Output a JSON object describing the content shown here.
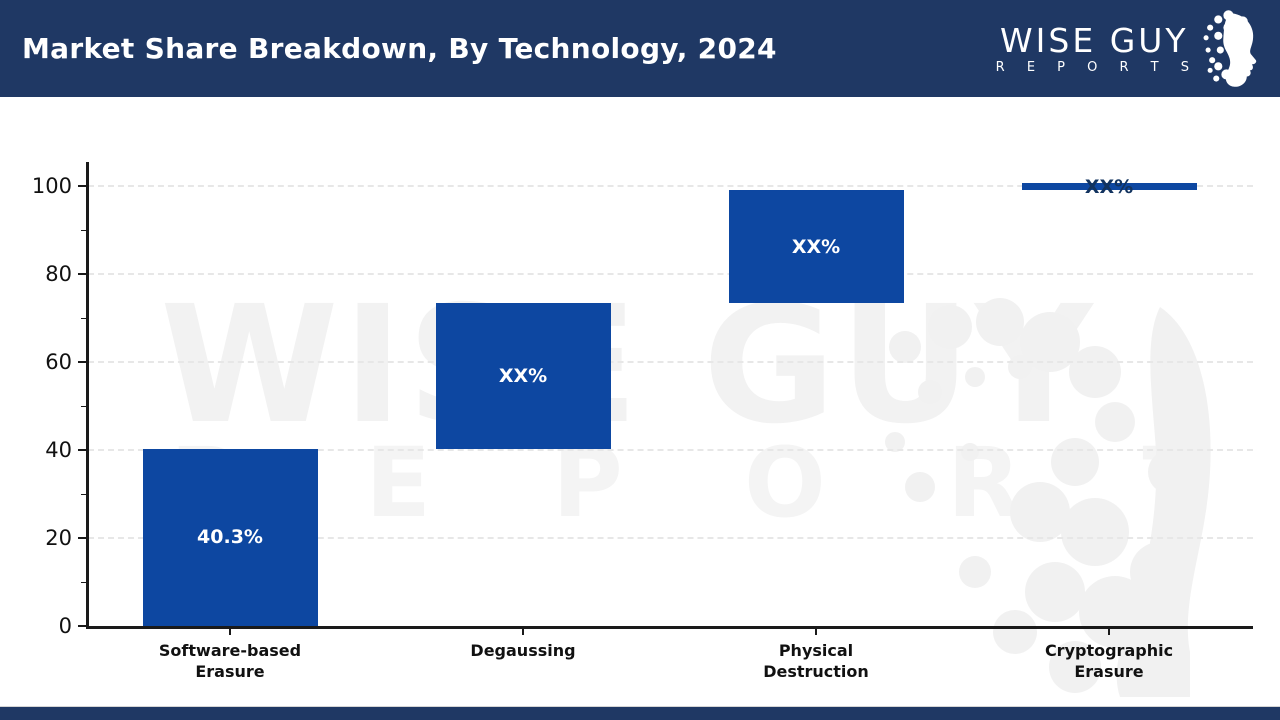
{
  "header": {
    "title": "Market Share Breakdown, By Technology, 2024",
    "logo": {
      "line1": "WISE GUY",
      "line2": "R E P O R T S"
    }
  },
  "watermark": {
    "line1": "WISE GUY",
    "line2": "R E P O R T S"
  },
  "chart_data": {
    "type": "bar",
    "subtype": "waterfall",
    "title": "Market Share Breakdown, By Technology, 2024",
    "xlabel": "",
    "ylabel": "",
    "ylim": [
      0,
      105.5
    ],
    "y_ticks": [
      0,
      20,
      40,
      60,
      80,
      100
    ],
    "y_minor_ticks": [
      10,
      30,
      50,
      70,
      90
    ],
    "grid": "horizontal-dashed",
    "legend": "none",
    "categories": [
      [
        "Software-based",
        "Erasure"
      ],
      [
        "Degaussing"
      ],
      [
        "Physical",
        "Destruction"
      ],
      [
        "Cryptographic",
        "Erasure"
      ]
    ],
    "segments": [
      {
        "category": "Software-based Erasure",
        "start": 0,
        "end": 40.3,
        "label": "40.3%"
      },
      {
        "category": "Degaussing",
        "start": 40.3,
        "end": 73.4,
        "label": "XX%"
      },
      {
        "category": "Physical Destruction",
        "start": 73.4,
        "end": 99.0,
        "label": "XX%"
      },
      {
        "category": "Cryptographic Erasure",
        "start": 99.0,
        "end": 100.6,
        "label": "XX%"
      }
    ]
  },
  "colors": {
    "header_bg": "#1f3864",
    "bar": "#0d47a1",
    "grid": "#e7e7e7",
    "axis": "#1a1a1a",
    "label_on_bar": "#ffffff",
    "label_thin_bar": "#12335f",
    "watermark": "#f2f2f2"
  }
}
